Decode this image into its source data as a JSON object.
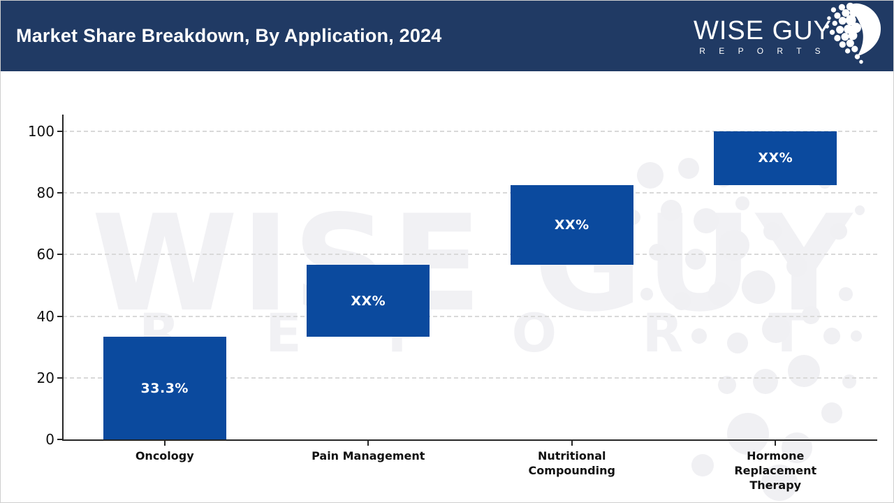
{
  "header": {
    "title": "Market Share Breakdown, By Application, 2024",
    "logo": {
      "name": "WISE GUY",
      "sub": "R E P O R T S",
      "head_icon": "dotted-head-profile"
    },
    "bg_color": "#203a64"
  },
  "watermark": {
    "line1": "WISE GUY",
    "line2": "R E P O R T S"
  },
  "chart_data": {
    "type": "bar",
    "subtype": "waterfall",
    "title": "Market Share Breakdown, By Application, 2024",
    "categories": [
      "Oncology",
      "Pain Management",
      "Nutritional\nCompounding",
      "Hormone\nReplacement\nTherapy"
    ],
    "segments": [
      {
        "category": "Oncology",
        "start": 0,
        "end": 33.3,
        "label": "33.3%"
      },
      {
        "category": "Pain Management",
        "start": 33.3,
        "end": 56.6,
        "label": "XX%"
      },
      {
        "category": "Nutritional Compounding",
        "start": 56.6,
        "end": 82.6,
        "label": "XX%"
      },
      {
        "category": "Hormone Replacement Therapy",
        "start": 82.6,
        "end": 100,
        "label": "XX%"
      }
    ],
    "ylim": [
      0,
      100
    ],
    "yticks": [
      0,
      20,
      40,
      60,
      80,
      100
    ],
    "xlabel": "",
    "ylabel": "",
    "grid": {
      "axis": "y",
      "style": "dashed"
    },
    "legend": "none",
    "colors": {
      "bar": "#0b4a9e",
      "bar_label": "#ffffff",
      "axis": "#262626",
      "gridline": "#d9d9d9",
      "tick_label": "#111111",
      "header_bg": "#203a64",
      "watermark": "#f1f1f4"
    }
  }
}
